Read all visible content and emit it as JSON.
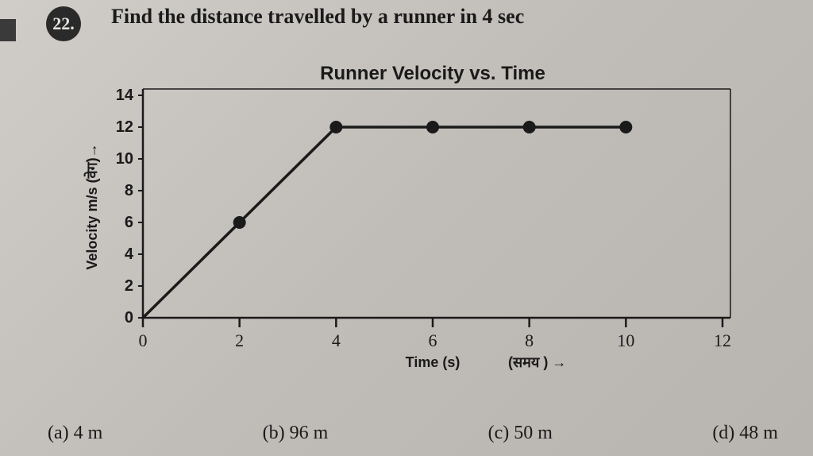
{
  "question": {
    "number": "22.",
    "text": "Find the distance travelled by a runner in 4 sec"
  },
  "chart": {
    "title": "Runner Velocity vs. Time",
    "title_fontsize": 24,
    "xlabel": "Time (s)",
    "xlabel_hindi": "(समय ) →",
    "ylabel": "Velocity m/s (वेग)→",
    "label_fontsize": 18,
    "tick_fontsize": 20,
    "xlim": [
      0,
      12
    ],
    "ylim": [
      0,
      14
    ],
    "xtick_step": 2,
    "ytick_step": 2,
    "xticks": [
      0,
      2,
      4,
      6,
      8,
      10,
      12
    ],
    "yticks": [
      0,
      2,
      4,
      6,
      8,
      10,
      12,
      14
    ],
    "line_color": "#1a1a1a",
    "line_width": 3.5,
    "marker_color": "#1a1a1a",
    "marker_radius": 8,
    "background_color": "transparent",
    "axis_color": "#1a1a1a",
    "axis_width": 2.5,
    "points_x": [
      0,
      2,
      4,
      6,
      8,
      10
    ],
    "points_y": [
      0,
      6,
      12,
      12,
      12,
      12
    ],
    "markers_x": [
      2,
      4,
      6,
      8,
      10
    ],
    "markers_y": [
      6,
      12,
      12,
      12,
      12
    ]
  },
  "answers": {
    "a": {
      "label": "(a)",
      "value": "4 m"
    },
    "b": {
      "label": "(b)",
      "value": "96 m"
    },
    "c": {
      "label": "(c)",
      "value": "50 m"
    },
    "d": {
      "label": "(d)",
      "value": "48 m"
    }
  }
}
